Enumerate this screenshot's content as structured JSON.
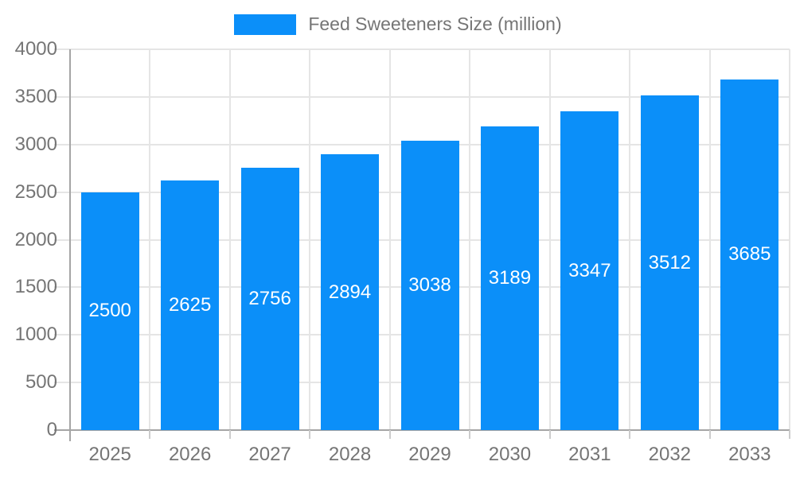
{
  "legend": {
    "label": "Feed Sweeteners Size (million)"
  },
  "colors": {
    "bar": "#0b8ff9",
    "bar_label": "#ffffff",
    "grid": "#e5e5e5",
    "axis": "#a5a5a5",
    "tick": "#cccccc",
    "label": "#757575",
    "background": "#ffffff"
  },
  "chart_data": {
    "type": "bar",
    "title": "",
    "xlabel": "",
    "ylabel": "",
    "legend": "Feed Sweeteners Size (million)",
    "legend_position": "top",
    "categories": [
      "2025",
      "2026",
      "2027",
      "2028",
      "2029",
      "2030",
      "2031",
      "2032",
      "2033"
    ],
    "values": [
      2500,
      2625,
      2756,
      2894,
      3038,
      3189,
      3347,
      3512,
      3685
    ],
    "bar_labels": true,
    "bar_label_position": "center",
    "ylim": [
      0,
      4000
    ],
    "ytick_step": 500,
    "yticks": [
      0,
      500,
      1000,
      1500,
      2000,
      2500,
      3000,
      3500,
      4000
    ],
    "grid": true
  }
}
